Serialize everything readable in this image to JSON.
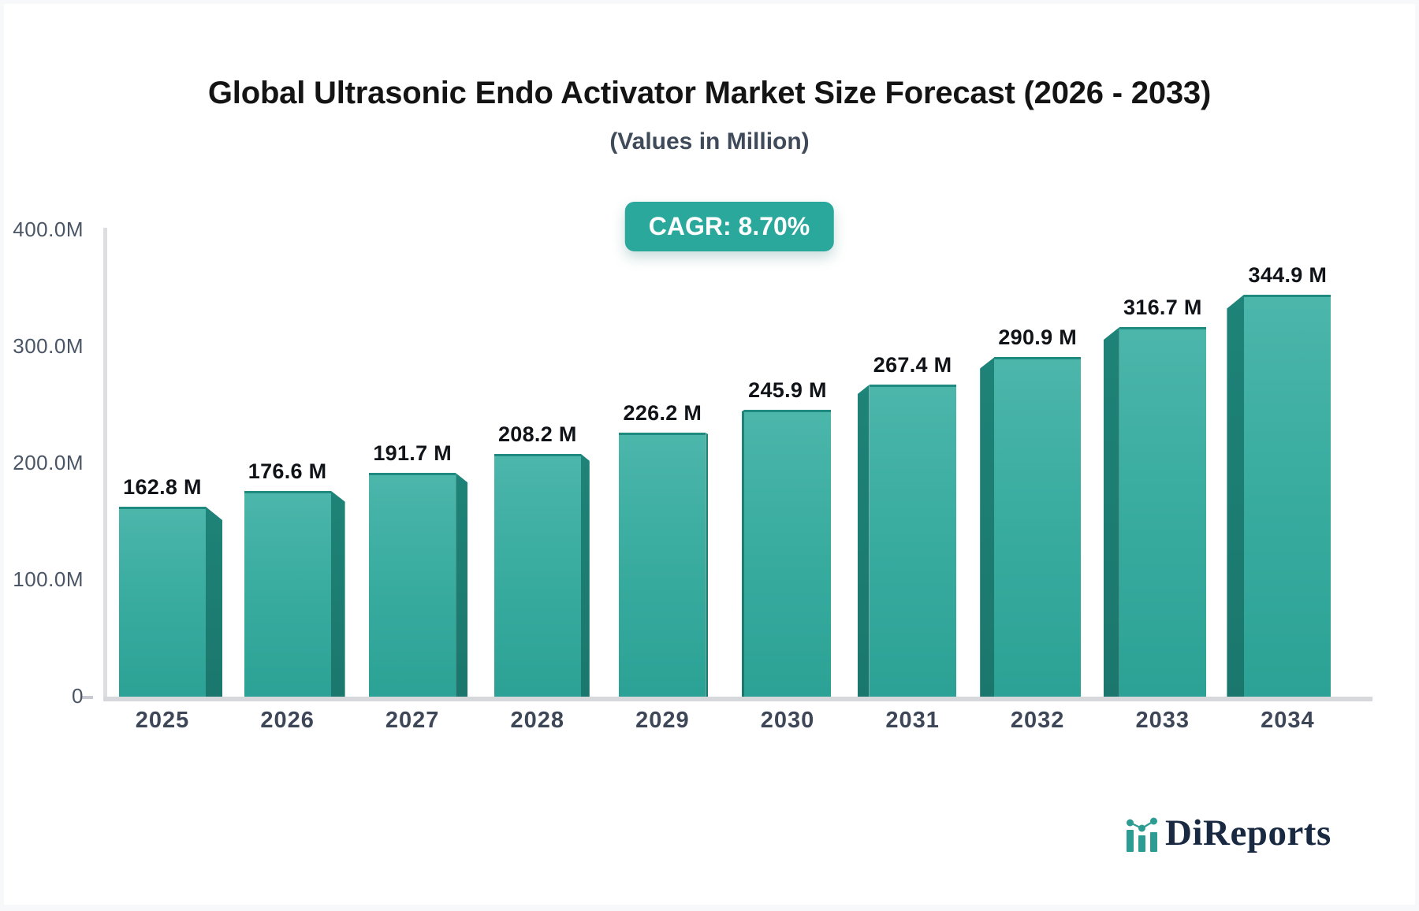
{
  "header": {
    "title": "Global Ultrasonic Endo Activator Market Size Forecast (2026 - 2033)",
    "subtitle": "(Values in Million)",
    "cagr_label": "CAGR: 8.70%"
  },
  "chart_data": {
    "type": "bar",
    "title": "Global Ultrasonic Endo Activator Market Size Forecast (2026 - 2033)",
    "subtitle": "(Values in Million)",
    "unit": "Million",
    "cagr": "8.70%",
    "categories": [
      "2025",
      "2026",
      "2027",
      "2028",
      "2029",
      "2030",
      "2031",
      "2032",
      "2033",
      "2034"
    ],
    "values": [
      162.8,
      176.6,
      191.7,
      208.2,
      226.2,
      245.9,
      267.4,
      290.9,
      316.7,
      344.9
    ],
    "value_labels": [
      "162.8 M",
      "176.6 M",
      "191.7 M",
      "208.2 M",
      "226.2 M",
      "245.9 M",
      "267.4 M",
      "290.9 M",
      "316.7 M",
      "344.9 M"
    ],
    "xlabel": "",
    "ylabel": "",
    "ylim": [
      0,
      400
    ],
    "y_tick_values": [
      400,
      300,
      200,
      100,
      0
    ],
    "y_tick_labels": [
      "400.0M",
      "300.0M",
      "200.0M",
      "100.0M",
      "0"
    ],
    "grid": "off",
    "legend": "none",
    "bar_color": "#3aaca0",
    "bar_side_color": "#1b776d",
    "accent_color": "#2aa89c"
  },
  "logo": {
    "text": "DiReports",
    "icon": "bar-chart-logo-icon",
    "color": "#1a2942",
    "icon_color": "#2d9c92"
  }
}
